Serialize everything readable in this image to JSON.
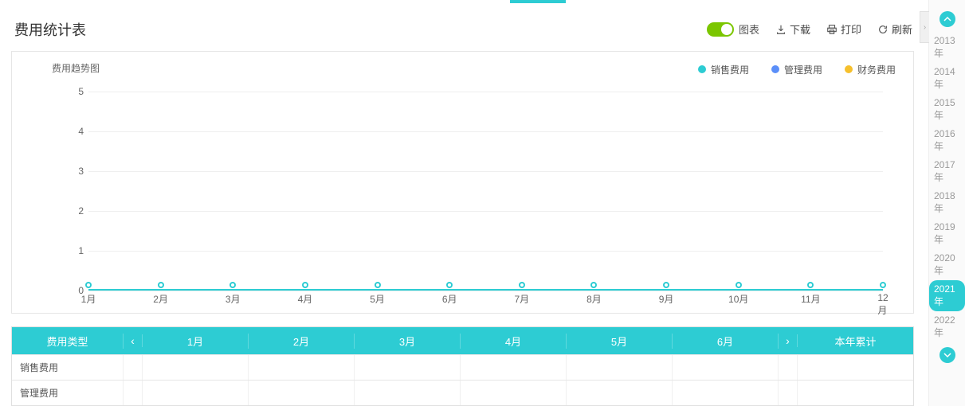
{
  "colors": {
    "accent": "#2dccd3",
    "toggle_on": "#7bc600",
    "series": {
      "sales": "#2dccd3",
      "admin": "#5b8ff9",
      "finance": "#f6c02d"
    },
    "grid": "#efefef",
    "border": "#e6e6e6",
    "text_muted": "#666"
  },
  "header": {
    "title": "费用统计表",
    "toggle_label": "图表",
    "download_label": "下载",
    "print_label": "打印",
    "refresh_label": "刷新"
  },
  "chart": {
    "type": "line",
    "title": "费用趋势图",
    "legend": [
      {
        "key": "sales",
        "label": "销售费用",
        "color": "#2dccd3"
      },
      {
        "key": "admin",
        "label": "管理费用",
        "color": "#5b8ff9"
      },
      {
        "key": "finance",
        "label": "财务费用",
        "color": "#f6c02d"
      }
    ],
    "x_labels": [
      "1月",
      "2月",
      "3月",
      "4月",
      "5月",
      "6月",
      "7月",
      "8月",
      "9月",
      "10月",
      "11月",
      "12月"
    ],
    "y_ticks": [
      0,
      1,
      2,
      3,
      4,
      5
    ],
    "ylim": [
      0,
      5
    ],
    "series": {
      "sales": {
        "color": "#2dccd3",
        "values": [
          0,
          0,
          0,
          0,
          0,
          0,
          0,
          0,
          0,
          0,
          0,
          0
        ]
      },
      "admin": {
        "color": "#5b8ff9",
        "values": [
          0,
          0,
          0,
          0,
          0,
          0,
          0,
          0,
          0,
          0,
          0,
          0
        ]
      },
      "finance": {
        "color": "#f6c02d",
        "values": [
          0,
          0,
          0,
          0,
          0,
          0,
          0,
          0,
          0,
          0,
          0,
          0
        ]
      }
    },
    "line_width": 2,
    "marker": {
      "shape": "circle",
      "size": 8,
      "fill": "#ffffff",
      "stroke_width": 2
    },
    "background_color": "#ffffff"
  },
  "table": {
    "header": {
      "type_col": "费用类型",
      "months": [
        "1月",
        "2月",
        "3月",
        "4月",
        "5月",
        "6月"
      ],
      "total_col": "本年累计",
      "prev_icon": "‹",
      "next_icon": "›"
    },
    "rows": [
      {
        "label": "销售费用",
        "cells": [
          "",
          "",
          "",
          "",
          "",
          ""
        ],
        "total": ""
      },
      {
        "label": "管理费用",
        "cells": [
          "",
          "",
          "",
          "",
          "",
          ""
        ],
        "total": ""
      }
    ]
  },
  "years": {
    "list": [
      "2013年",
      "2014年",
      "2015年",
      "2016年",
      "2017年",
      "2018年",
      "2019年",
      "2020年",
      "2021年",
      "2022年"
    ],
    "active": "2021年"
  }
}
